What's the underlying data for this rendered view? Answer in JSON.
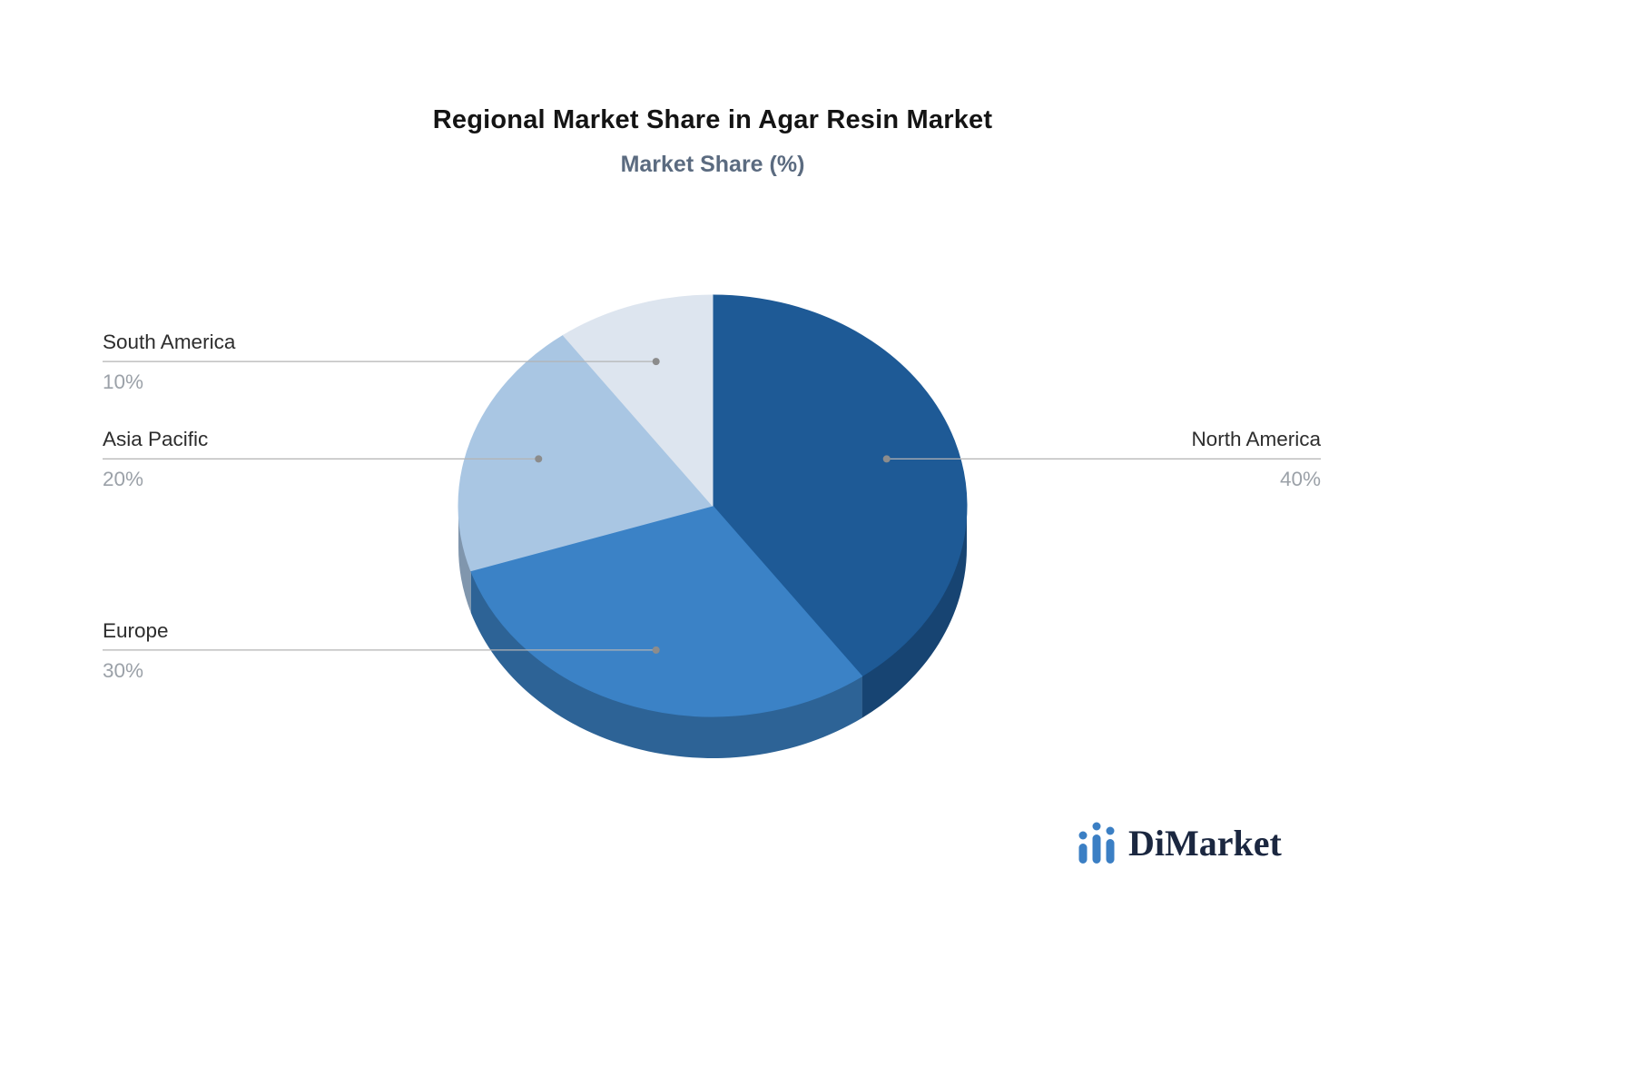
{
  "header": {
    "title": "Regional Market Share in Agar Resin Market",
    "subtitle": "Market Share (%)"
  },
  "chart_data": {
    "type": "pie",
    "title": "Regional Market Share in Agar Resin Market",
    "subtitle": "Market Share (%)",
    "unit": "%",
    "effect": "3d",
    "direction": "clockwise",
    "start_angle_deg": 0,
    "legend_position": "none",
    "categories": [
      "North America",
      "Europe",
      "Asia Pacific",
      "South America"
    ],
    "values": [
      40,
      30,
      20,
      10
    ],
    "slices": [
      {
        "label": "North America",
        "value": 40,
        "pct_label": "40%",
        "color": "#1e5a96",
        "label_side": "right"
      },
      {
        "label": "Europe",
        "value": 30,
        "pct_label": "30%",
        "color": "#3b82c6",
        "label_side": "left"
      },
      {
        "label": "Asia Pacific",
        "value": 20,
        "pct_label": "20%",
        "color": "#a9c6e3",
        "label_side": "left"
      },
      {
        "label": "South America",
        "value": 10,
        "pct_label": "10%",
        "color": "#dde5ef",
        "label_side": "left"
      }
    ]
  },
  "branding": {
    "logo_text": "DiMarket",
    "logo_icon": "bar-chart-with-dots-icon",
    "logo_text_color": "#1b2740",
    "logo_icon_color": "#3b7fc4"
  },
  "colors": {
    "title": "#141414",
    "subtitle": "#5b6b80",
    "label_name": "#2d2d2d",
    "label_value": "#9ba1a8",
    "leader_line": "#b3b3b3",
    "leader_dot": "#8c8c8c",
    "background": "#ffffff"
  }
}
